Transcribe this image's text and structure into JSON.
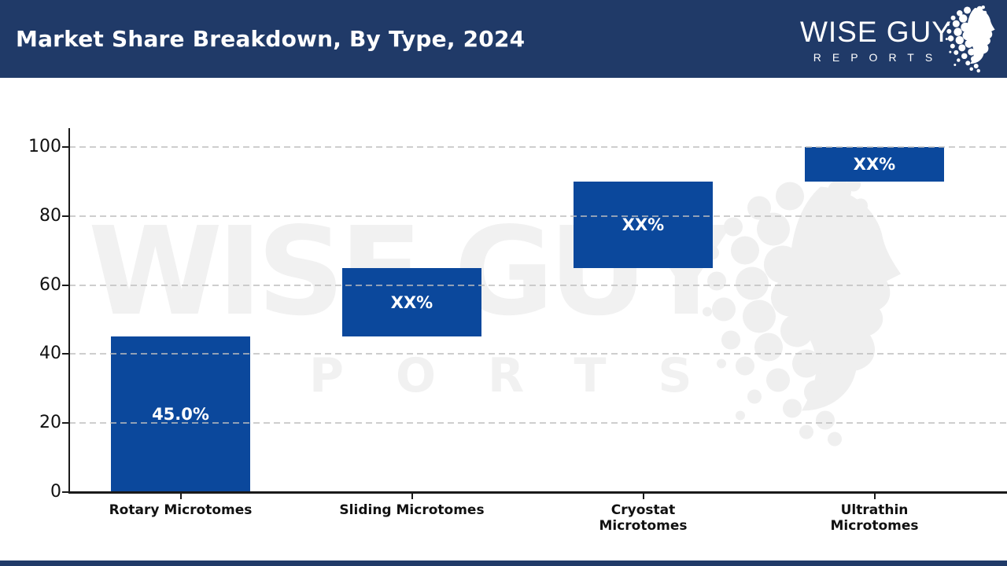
{
  "header": {
    "title": "Market Share Breakdown, By Type, 2024",
    "bg_color": "#203a68",
    "logo": {
      "wordmark": "WISE GUY",
      "subtext": "REPORTS"
    }
  },
  "watermark": {
    "line1": "WISE GUY",
    "line2": "PORTS"
  },
  "chart_data": {
    "type": "bar",
    "subtype": "waterfall",
    "title": "Market Share Breakdown, By Type, 2024",
    "categories": [
      "Rotary Microtomes",
      "Sliding Microtomes",
      "Cryostat\nMicrotomes",
      "Ultrathin\nMicrotomes"
    ],
    "segments": [
      {
        "category": "Rotary Microtomes",
        "start": 0,
        "end": 45,
        "label": "45.0%"
      },
      {
        "category": "Sliding Microtomes",
        "start": 45,
        "end": 65,
        "label": "XX%"
      },
      {
        "category": "Cryostat Microtomes",
        "start": 65,
        "end": 90,
        "label": "XX%"
      },
      {
        "category": "Ultrathin Microtomes",
        "start": 90,
        "end": 100,
        "label": "XX%"
      }
    ],
    "xlabel": "",
    "ylabel": "",
    "ylim": [
      0,
      100
    ],
    "yticks": [
      0,
      20,
      40,
      60,
      80,
      100
    ],
    "grid": "horizontal dashed",
    "legend": false,
    "bar_color": "#0b489c",
    "bar_label_color": "#ffffff",
    "axis_color": "#1a1a1a"
  },
  "footer": {
    "bg_color": "#203a68"
  }
}
